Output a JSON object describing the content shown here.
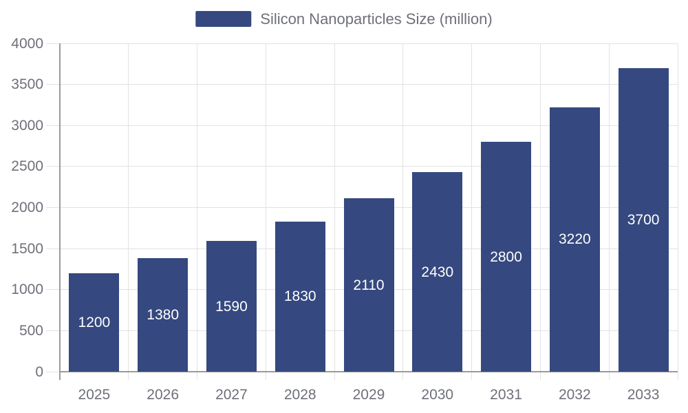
{
  "chart_data": {
    "type": "bar",
    "title": "",
    "legend": "Silicon Nanoparticles Size (million)",
    "categories": [
      "2025",
      "2026",
      "2027",
      "2028",
      "2029",
      "2030",
      "2031",
      "2032",
      "2033"
    ],
    "values": [
      1200,
      1380,
      1590,
      1830,
      2110,
      2430,
      2800,
      3220,
      3700
    ],
    "series": [
      {
        "name": "Silicon Nanoparticles Size (million)",
        "values": [
          1200,
          1380,
          1590,
          1830,
          2110,
          2430,
          2800,
          3220,
          3700
        ]
      }
    ],
    "xlabel": "",
    "ylabel": "",
    "ylim": [
      0,
      4000
    ],
    "ytick_step": 500,
    "yticks": [
      0,
      500,
      1000,
      1500,
      2000,
      2500,
      3000,
      3500,
      4000
    ],
    "grid": true,
    "legend_position": "top-center",
    "value_label_position": "inside-center",
    "colors": {
      "bar": "#35487F",
      "legend_text": "#6E7079",
      "axis_label": "#6E7079",
      "grid_line": "#E2E2E2",
      "axis_line": "#9A9A9A",
      "value_label": "#FFFFFF",
      "background": "#FFFFFF"
    }
  }
}
